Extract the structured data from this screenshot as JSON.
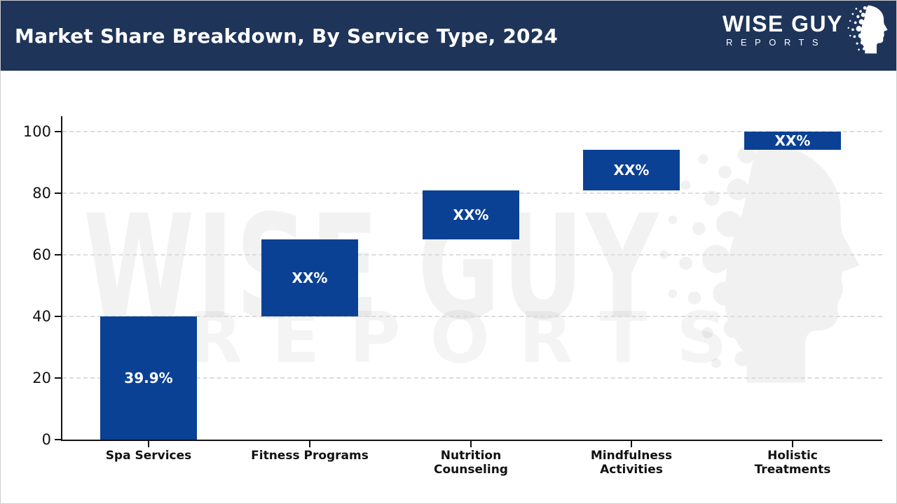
{
  "header": {
    "title": "Market Share Breakdown, By Service Type, 2024",
    "logo": {
      "wordmark": "WISE GUY",
      "subtitle": "REPORTS"
    }
  },
  "watermark": {
    "line1": "WISE GUY",
    "line2": "REPORTS"
  },
  "colors": {
    "header_bg": "#1f3459",
    "bar": "#0b4194",
    "grid": "#dcdcdc",
    "axis": "#111111",
    "bar_label": "#ffffff",
    "category_label": "#111111"
  },
  "chart_data": {
    "type": "bar",
    "subtype": "floating-waterfall",
    "title": "Market Share Breakdown, By Service Type, 2024",
    "categories": [
      "Spa Services",
      "Fitness Programs",
      "Nutrition Counseling",
      "Mindfulness Activities",
      "Holistic Treatments"
    ],
    "category_lines": [
      [
        "Spa Services"
      ],
      [
        "Fitness Programs"
      ],
      [
        "Nutrition",
        "Counseling"
      ],
      [
        "Mindfulness",
        "Activities"
      ],
      [
        "Holistic",
        "Treatments"
      ]
    ],
    "segments": [
      {
        "category": "Spa Services",
        "start": 0,
        "end": 39.9,
        "label": "39.9%"
      },
      {
        "category": "Fitness Programs",
        "start": 39.9,
        "end": 65,
        "label": "XX%"
      },
      {
        "category": "Nutrition Counseling",
        "start": 65,
        "end": 81,
        "label": "XX%"
      },
      {
        "category": "Mindfulness Activities",
        "start": 81,
        "end": 94,
        "label": "XX%"
      },
      {
        "category": "Holistic Treatments",
        "start": 94,
        "end": 100,
        "label": "XX%"
      }
    ],
    "xlabel": "",
    "ylabel": "",
    "yticks": [
      0,
      20,
      40,
      60,
      80,
      100
    ],
    "ylim": [
      0,
      105
    ],
    "grid": "horizontal-dashed",
    "legend": "none",
    "bar_color": "#0b4194",
    "value_label_color": "#ffffff"
  }
}
